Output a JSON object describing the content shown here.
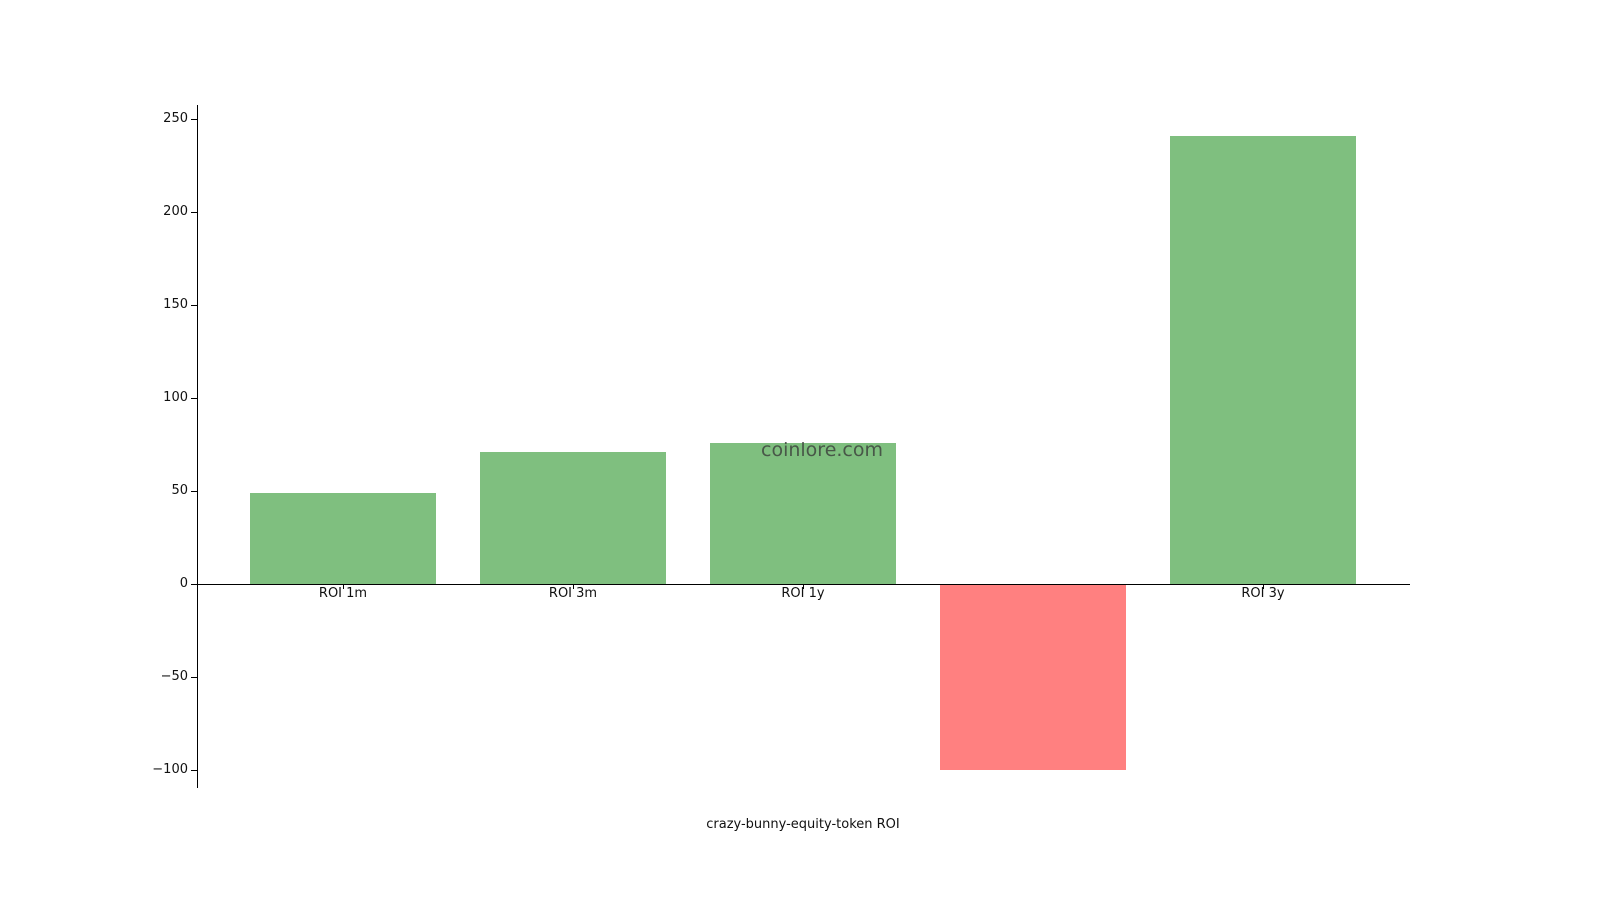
{
  "chart_data": {
    "type": "bar",
    "title": "crazy-bunny-equity-token ROI",
    "watermark": "coinlore.com",
    "categories": [
      "ROI 1m",
      "ROI 3m",
      "ROI 1y",
      "",
      "ROI 3y"
    ],
    "values": [
      49,
      71,
      76,
      -100,
      241
    ],
    "x_tick_visible": [
      true,
      true,
      true,
      false,
      true
    ],
    "positive_color": "#7fbf7f",
    "negative_color": "#ff8080",
    "axis_color": "#000000",
    "text_color": "#111111",
    "yticks": [
      250,
      200,
      150,
      100,
      50,
      0,
      -50,
      -100
    ],
    "ylim": [
      -117,
      258
    ],
    "xlabel": "",
    "ylabel": "",
    "grid": false,
    "legend_position": "none"
  }
}
